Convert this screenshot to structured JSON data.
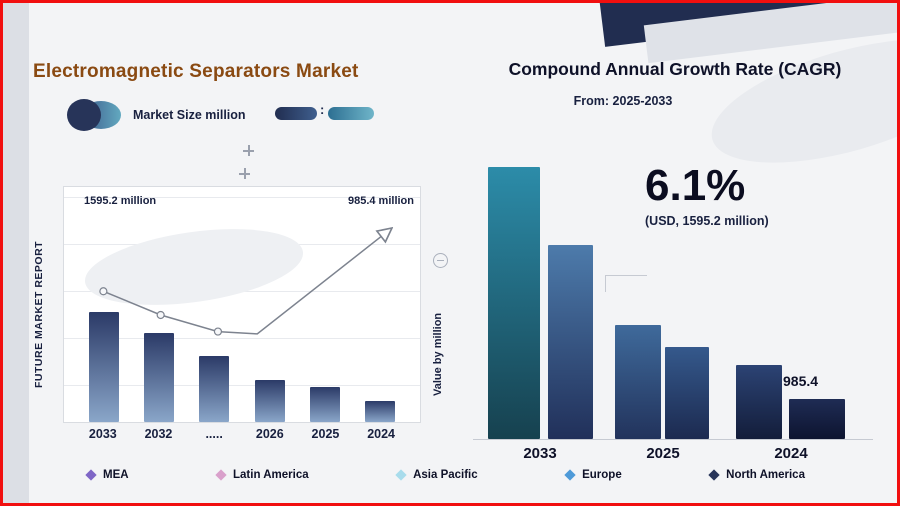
{
  "header": {
    "left_title": "Electromagnetic Separators Market",
    "left_legend_label": "Market Size million",
    "right_title": "Compound Annual Growth Rate (CAGR)",
    "right_subtitle": "From: 2025-2033"
  },
  "stats": {
    "cagr": "6.1%",
    "cagr_note": "(USD, 1595.2 million)",
    "annotation_left": "1595.2 million",
    "annotation_right": "985.4 million",
    "bar_callout": "985.4"
  },
  "axes": {
    "left_vertical_label": "FUTURE MARKET REPORT",
    "right_vertical_label": "Value by million"
  },
  "legend": {
    "items": [
      {
        "label": "MEA",
        "color": "#7e66c6"
      },
      {
        "label": "Latin America",
        "color": "#d9a0cb"
      },
      {
        "label": "Asia Pacific",
        "color": "#a8dcec"
      },
      {
        "label": "Europe",
        "color": "#4e9ad8"
      },
      {
        "label": "North America",
        "color": "#273459"
      }
    ]
  },
  "colors": {
    "border": "#f10f0f",
    "left_title": "#8a4a12",
    "navy_text": "#18203f",
    "market_bar_gradient": [
      "#2b3a67",
      "#8aa6c9"
    ]
  },
  "chart_data": [
    {
      "type": "bar",
      "title": "Electromagnetic Separators Market",
      "legend": [
        "Market Size million"
      ],
      "categories": [
        "2033",
        "2032",
        ".....",
        "2026",
        "2025",
        "2024"
      ],
      "values": [
        47,
        38,
        28,
        18,
        15,
        9
      ],
      "values_unit": "relative bar height %, value axis unlabeled",
      "labeled_values": {
        "2033": "1595.2 million",
        "2024": "985.4 million"
      },
      "ylabel": "FUTURE MARKET REPORT",
      "grid": true,
      "trend_line": {
        "points_pct": [
          [
            11,
            44
          ],
          [
            27,
            54
          ],
          [
            43,
            61
          ],
          [
            54,
            62
          ],
          [
            91,
            18
          ]
        ],
        "marker_count": 3,
        "arrow_end": true
      }
    },
    {
      "type": "bar",
      "title": "Compound Annual Growth Rate (CAGR)",
      "subtitle": "From: 2025-2033",
      "categories": [
        "2033",
        "2025",
        "2024"
      ],
      "series": [
        {
          "name": "series-1",
          "values": [
            95,
            40,
            26
          ]
        },
        {
          "name": "series-2",
          "values": [
            68,
            32,
            14
          ]
        }
      ],
      "values_unit": "relative bar height %, value axis unlabeled",
      "cagr": "6.1%",
      "cagr_note": "(USD, 1595.2 million)",
      "data_label": {
        "category": "2024",
        "text": "985.4"
      },
      "ylabel": "Value by million",
      "bar_styles": [
        [
          "#2c8ca9",
          "#16414f"
        ],
        [
          "#4d7bab",
          "#21305a"
        ],
        [
          "#3f6a9b",
          "#22335c"
        ],
        [
          "#35598c",
          "#1c2a50"
        ],
        [
          "#2c4374",
          "#131d3a"
        ],
        [
          "#1f2c54",
          "#0d1430"
        ]
      ]
    }
  ]
}
